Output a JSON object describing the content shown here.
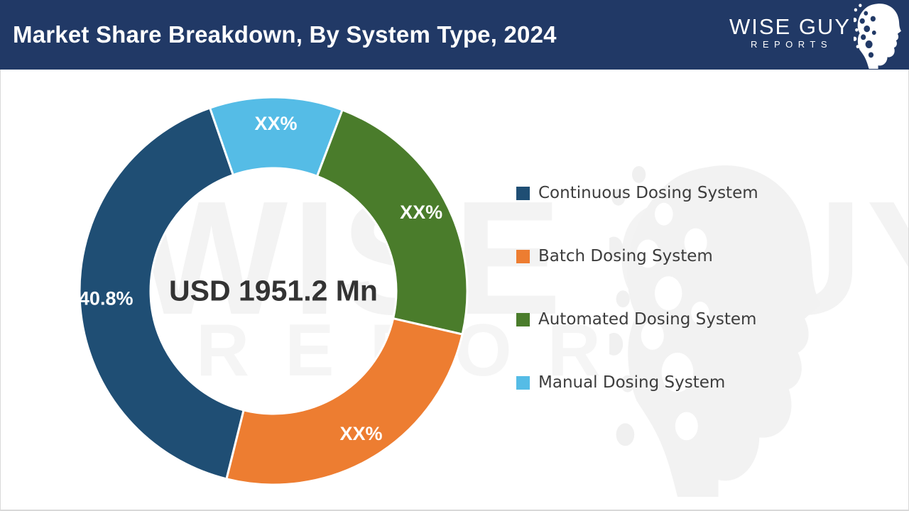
{
  "header": {
    "title": "Market Share Breakdown, By System Type, 2024",
    "logo": {
      "line1": "WISE GUY",
      "line2": "REPORTS"
    }
  },
  "watermark": {
    "line1": "WISE GUY",
    "line2": "REPORTS"
  },
  "chart_data": {
    "type": "donut",
    "title": "Market Share Breakdown, By System Type, 2024",
    "center_label": "USD 1951.2 Mn",
    "start_angle_deg": 194,
    "legend_position": "right",
    "segments": [
      {
        "label": "Continuous Dosing System",
        "display": "40.8%",
        "value_pct": 40.8,
        "color": "#1F4E74"
      },
      {
        "label": "Manual Dosing System",
        "display": "XX%",
        "value_pct": 11.1,
        "color": "#55BCE6"
      },
      {
        "label": "Automated Dosing System",
        "display": "XX%",
        "value_pct": 22.8,
        "color": "#4A7C2B"
      },
      {
        "label": "Batch Dosing System",
        "display": "XX%",
        "value_pct": 25.3,
        "color": "#ED7D31"
      }
    ]
  },
  "legend": {
    "items": [
      {
        "label": "Continuous Dosing System",
        "color": "#1F4E74"
      },
      {
        "label": "Batch Dosing System",
        "color": "#ED7D31"
      },
      {
        "label": "Automated Dosing System",
        "color": "#4A7C2B"
      },
      {
        "label": "Manual Dosing System",
        "color": "#55BCE6"
      }
    ]
  },
  "colors": {
    "header_bg": "#213966",
    "center_text": "#333333",
    "legend_text": "#3D3D3D",
    "border": "#D9D9D9",
    "watermark": "#F3F3F3"
  }
}
